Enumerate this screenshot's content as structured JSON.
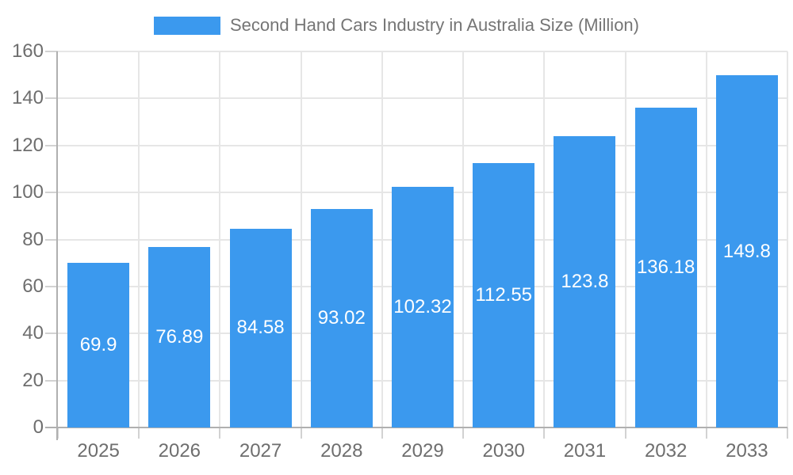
{
  "chart_data": {
    "type": "bar",
    "title": "Second Hand Cars Industry in Australia Size (Million)",
    "categories": [
      "2025",
      "2026",
      "2027",
      "2028",
      "2029",
      "2030",
      "2031",
      "2032",
      "2033"
    ],
    "values": [
      69.9,
      76.89,
      84.58,
      93.02,
      102.32,
      112.55,
      123.8,
      136.18,
      149.8
    ],
    "value_labels": [
      "69.9",
      "76.89",
      "84.58",
      "93.02",
      "102.32",
      "112.55",
      "123.8",
      "136.18",
      "149.8"
    ],
    "xlabel": "",
    "ylabel": "",
    "ylim": [
      0,
      160
    ],
    "ytick_step": 20,
    "ytick_labels": [
      "0",
      "20",
      "40",
      "60",
      "80",
      "100",
      "120",
      "140",
      "160"
    ],
    "grid": true,
    "legend": {
      "position": "top",
      "entries": [
        {
          "label": "Second Hand Cars Industry in Australia Size (Million)",
          "color": "#3b99ee"
        }
      ]
    },
    "colors": {
      "bar": "#3b99ee",
      "grid": "#e6e6e6",
      "axis": "#b0b0b0",
      "tick": "#d2d2d2",
      "text": "#6e6e6e",
      "title": "#757575",
      "value_label": "#ffffff",
      "background": "#ffffff"
    }
  }
}
